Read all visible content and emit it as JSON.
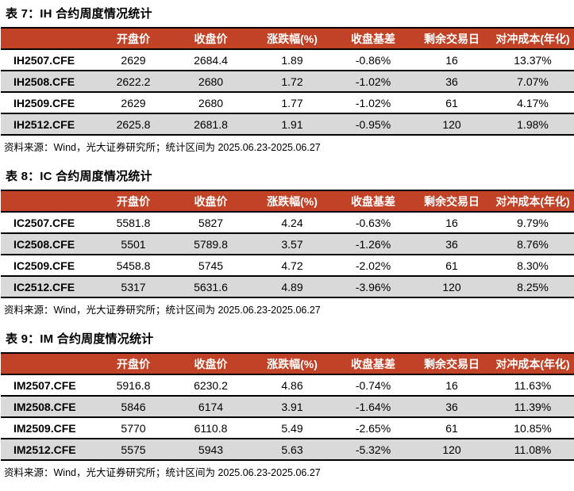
{
  "colors": {
    "header_bg": "#C14227",
    "header_text": "#FFFFFF",
    "row_alt_bg": "#D9D9D9",
    "rule": "#000000"
  },
  "tables": [
    {
      "title": "表 7：IH 合约周度情况统计",
      "columns": [
        "",
        "开盘价",
        "收盘价",
        "涨跌幅(%)",
        "收盘基差",
        "剩余交易日",
        "对冲成本(年化)"
      ],
      "rows": [
        [
          "IH2507.CFE",
          "2629",
          "2684.4",
          "1.89",
          "-0.86%",
          "16",
          "13.37%"
        ],
        [
          "IH2508.CFE",
          "2622.2",
          "2680",
          "1.72",
          "-1.02%",
          "36",
          "7.07%"
        ],
        [
          "IH2509.CFE",
          "2629",
          "2680",
          "1.77",
          "-1.02%",
          "61",
          "4.17%"
        ],
        [
          "IH2512.CFE",
          "2625.8",
          "2681.8",
          "1.91",
          "-0.95%",
          "120",
          "1.98%"
        ]
      ],
      "source": "资料来源：Wind，光大证券研究所；统计区间为 2025.06.23-2025.06.27"
    },
    {
      "title": "表 8：IC 合约周度情况统计",
      "columns": [
        "",
        "开盘价",
        "收盘价",
        "涨跌幅(%)",
        "收盘基差",
        "剩余交易日",
        "对冲成本(年化)"
      ],
      "rows": [
        [
          "IC2507.CFE",
          "5581.8",
          "5827",
          "4.24",
          "-0.63%",
          "16",
          "9.79%"
        ],
        [
          "IC2508.CFE",
          "5501",
          "5789.8",
          "3.57",
          "-1.26%",
          "36",
          "8.76%"
        ],
        [
          "IC2509.CFE",
          "5458.8",
          "5745",
          "4.72",
          "-2.02%",
          "61",
          "8.30%"
        ],
        [
          "IC2512.CFE",
          "5317",
          "5631.6",
          "4.89",
          "-3.96%",
          "120",
          "8.25%"
        ]
      ],
      "source": "资料来源：Wind，光大证券研究所；统计区间为 2025.06.23-2025.06.27"
    },
    {
      "title": "表 9：IM 合约周度情况统计",
      "columns": [
        "",
        "开盘价",
        "收盘价",
        "涨跌幅(%)",
        "收盘基差",
        "剩余交易日",
        "对冲成本(年化)"
      ],
      "rows": [
        [
          "IM2507.CFE",
          "5916.8",
          "6230.2",
          "4.86",
          "-0.74%",
          "16",
          "11.63%"
        ],
        [
          "IM2508.CFE",
          "5846",
          "6174",
          "3.91",
          "-1.64%",
          "36",
          "11.39%"
        ],
        [
          "IM2509.CFE",
          "5770",
          "6110.8",
          "5.49",
          "-2.65%",
          "61",
          "10.85%"
        ],
        [
          "IM2512.CFE",
          "5575",
          "5943",
          "5.63",
          "-5.32%",
          "120",
          "11.08%"
        ]
      ],
      "source": "资料来源：Wind，光大证券研究所；统计区间为 2025.06.23-2025.06.27"
    }
  ]
}
